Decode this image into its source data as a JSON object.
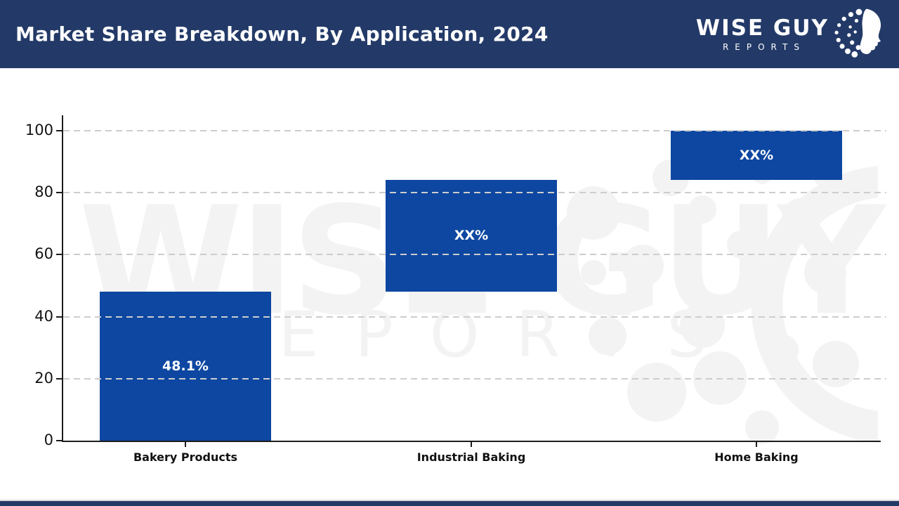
{
  "header": {
    "title": "Market Share Breakdown, By Application, 2024"
  },
  "logo": {
    "line1": "WISE GUY",
    "line2": "REPORTS"
  },
  "watermark": {
    "line1": "WISE GUY",
    "line2": "REPORTS"
  },
  "colors": {
    "header_bg": "#233a68",
    "footer_bg": "#233a68",
    "bar_blue": "#0d47a1",
    "watermark_gray": "#f3f3f3",
    "gridline_gray": "#cdcdcd",
    "axis_black": "#1c1c1c"
  },
  "chart_data": {
    "type": "bar",
    "subtype": "waterfall",
    "title": "Market Share Breakdown, By Application, 2024",
    "categories": [
      "Bakery Products",
      "Industrial Baking",
      "Home Baking"
    ],
    "segments": [
      {
        "category": "Bakery Products",
        "start": 0,
        "end": 48.1,
        "label": "48.1%"
      },
      {
        "category": "Industrial Baking",
        "start": 48.1,
        "end": 84.1,
        "label": "XX%"
      },
      {
        "category": "Home Baking",
        "start": 84.1,
        "end": 100,
        "label": "XX%"
      }
    ],
    "xlabel": "",
    "ylabel": "",
    "ylim": [
      0,
      100
    ],
    "yticks": [
      0,
      20,
      40,
      60,
      80,
      100
    ],
    "grid": {
      "axis": "y",
      "style": "dashed",
      "drawn_over_bars": true
    },
    "legend": "none",
    "bar_label_color": "#ffffff"
  }
}
